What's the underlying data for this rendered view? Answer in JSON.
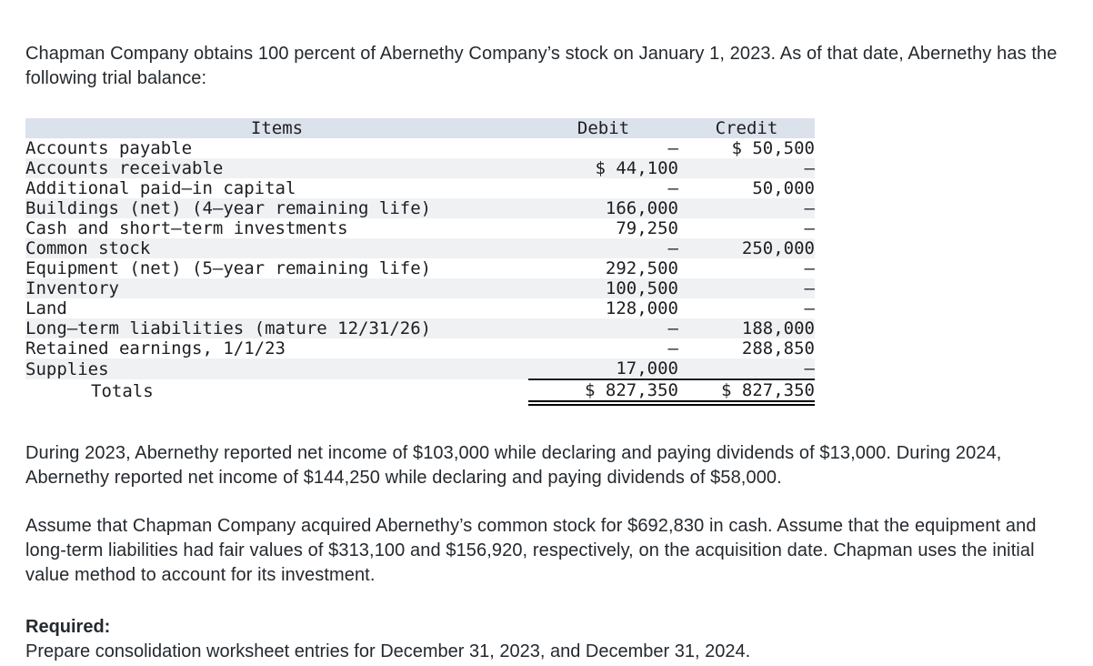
{
  "intro": "Chapman Company obtains 100 percent of Abernethy Company’s stock on January 1, 2023. As of that date, Abernethy has the following trial balance:",
  "table": {
    "headers": [
      "Items",
      "Debit",
      "Credit"
    ],
    "rows": [
      {
        "item": "Accounts payable",
        "debit": "–",
        "credit": "$ 50,500"
      },
      {
        "item": "Accounts receivable",
        "debit": "$ 44,100",
        "credit": "–"
      },
      {
        "item": "Additional paid–in capital",
        "debit": "–",
        "credit": "50,000"
      },
      {
        "item": "Buildings (net) (4–year remaining life)",
        "debit": "166,000",
        "credit": "–"
      },
      {
        "item": "Cash and short–term investments",
        "debit": "79,250",
        "credit": "–"
      },
      {
        "item": "Common stock",
        "debit": "–",
        "credit": "250,000"
      },
      {
        "item": "Equipment (net) (5–year remaining life)",
        "debit": "292,500",
        "credit": "–"
      },
      {
        "item": "Inventory",
        "debit": "100,500",
        "credit": "–"
      },
      {
        "item": "Land",
        "debit": "128,000",
        "credit": "–"
      },
      {
        "item": "Long–term liabilities (mature 12/31/26)",
        "debit": "–",
        "credit": "188,000"
      },
      {
        "item": "Retained earnings, 1/1/23",
        "debit": "–",
        "credit": "288,850"
      },
      {
        "item": "Supplies",
        "debit": "17,000",
        "credit": "–"
      }
    ],
    "totals": {
      "label": "Totals",
      "debit": "$ 827,350",
      "credit": "$ 827,350"
    }
  },
  "paragraph_income": "During 2023, Abernethy reported net income of $103,000 while declaring and paying dividends of $13,000. During 2024, Abernethy reported net income of $144,250 while declaring and paying dividends of $58,000.",
  "paragraph_assume": "Assume that Chapman Company acquired Abernethy’s common stock for $692,830 in cash. Assume that the equipment and long-term liabilities had fair values of $313,100 and $156,920, respectively, on the acquisition date. Chapman uses the initial value method to account for its investment.",
  "required": {
    "label": "Required:",
    "text": "Prepare consolidation worksheet entries for December 31, 2023, and December 31, 2024."
  }
}
